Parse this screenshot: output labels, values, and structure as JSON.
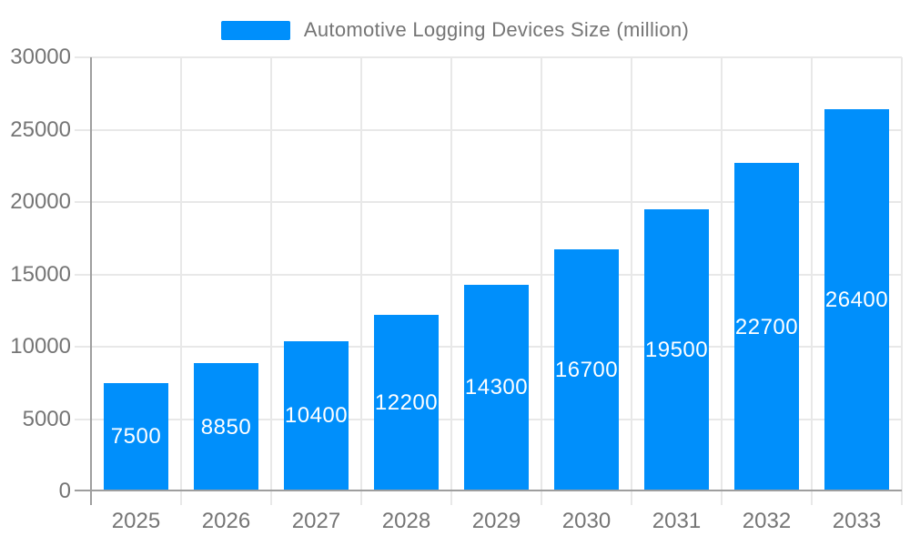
{
  "legend": {
    "label": "Automotive Logging Devices Size (million)"
  },
  "chart_data": {
    "type": "bar",
    "title": "",
    "series_name": "Automotive Logging Devices Size (million)",
    "categories": [
      "2025",
      "2026",
      "2027",
      "2028",
      "2029",
      "2030",
      "2031",
      "2032",
      "2033"
    ],
    "values": [
      7500,
      8850,
      10400,
      12200,
      14300,
      16700,
      19500,
      22700,
      26400
    ],
    "value_labels": [
      "7500",
      "8850",
      "10400",
      "12200",
      "14300",
      "16700",
      "19500",
      "22700",
      "26400"
    ],
    "xlabel": "",
    "ylabel": "",
    "ylim": [
      0,
      30000
    ],
    "yticks": [
      0,
      5000,
      10000,
      15000,
      20000,
      25000,
      30000
    ],
    "grid": "horizontal and vertical light gridlines",
    "legend_position": "top-center",
    "value_label_position": "centered inside bar",
    "colors": {
      "bar": "#008FFB",
      "value_label": "#FFFFFF",
      "axis_label": "#757575",
      "legend_label": "#757575",
      "gridline": "#E8E8E8",
      "axis_line": "#9E9E9E",
      "background": "#FFFFFF"
    }
  }
}
